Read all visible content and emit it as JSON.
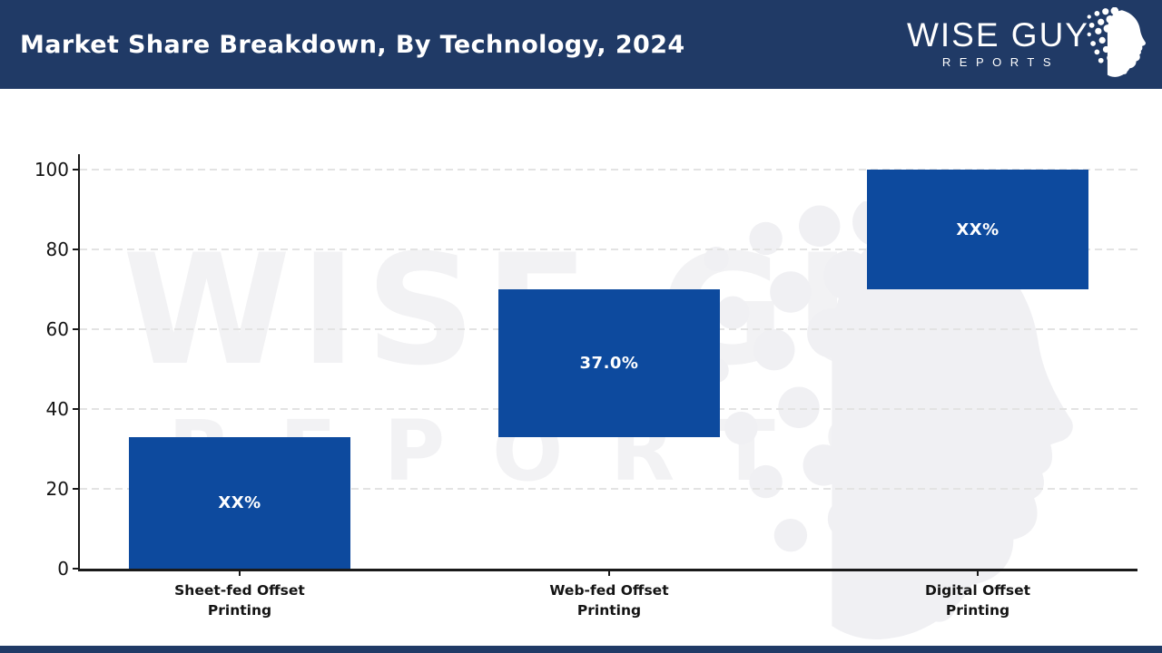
{
  "header": {
    "title": "Market Share Breakdown, By Technology, 2024",
    "logo": {
      "line1": "WISE GUY",
      "line2": "REPORTS"
    }
  },
  "watermark": {
    "line1": "WISE GUY",
    "line2": "REPORTS"
  },
  "colors": {
    "header_bg": "#203a66",
    "footer_bg": "#203a66",
    "bar": "#0d4a9e",
    "bar_label": "#ffffff",
    "grid": "#e3e3e3",
    "axis": "#1a1a1a",
    "tick_text": "#141414",
    "watermark": "#f2f2f4"
  },
  "chart_data": {
    "type": "bar",
    "subtype": "waterfall",
    "title": "Market Share Breakdown, By Technology, 2024",
    "xlabel": "",
    "ylabel": "",
    "categories": [
      [
        "Sheet-fed Offset",
        "Printing"
      ],
      [
        "Web-fed Offset",
        "Printing"
      ],
      [
        "Digital Offset",
        "Printing"
      ]
    ],
    "segments": [
      {
        "start": 0,
        "end": 33,
        "label": "XX%"
      },
      {
        "start": 33,
        "end": 70,
        "label": "37.0%"
      },
      {
        "start": 70,
        "end": 100,
        "label": "XX%"
      }
    ],
    "yticks": [
      0,
      20,
      40,
      60,
      80,
      100
    ],
    "ylim": [
      0,
      104
    ],
    "grid": "horizontal-dashed",
    "legend": "none"
  }
}
